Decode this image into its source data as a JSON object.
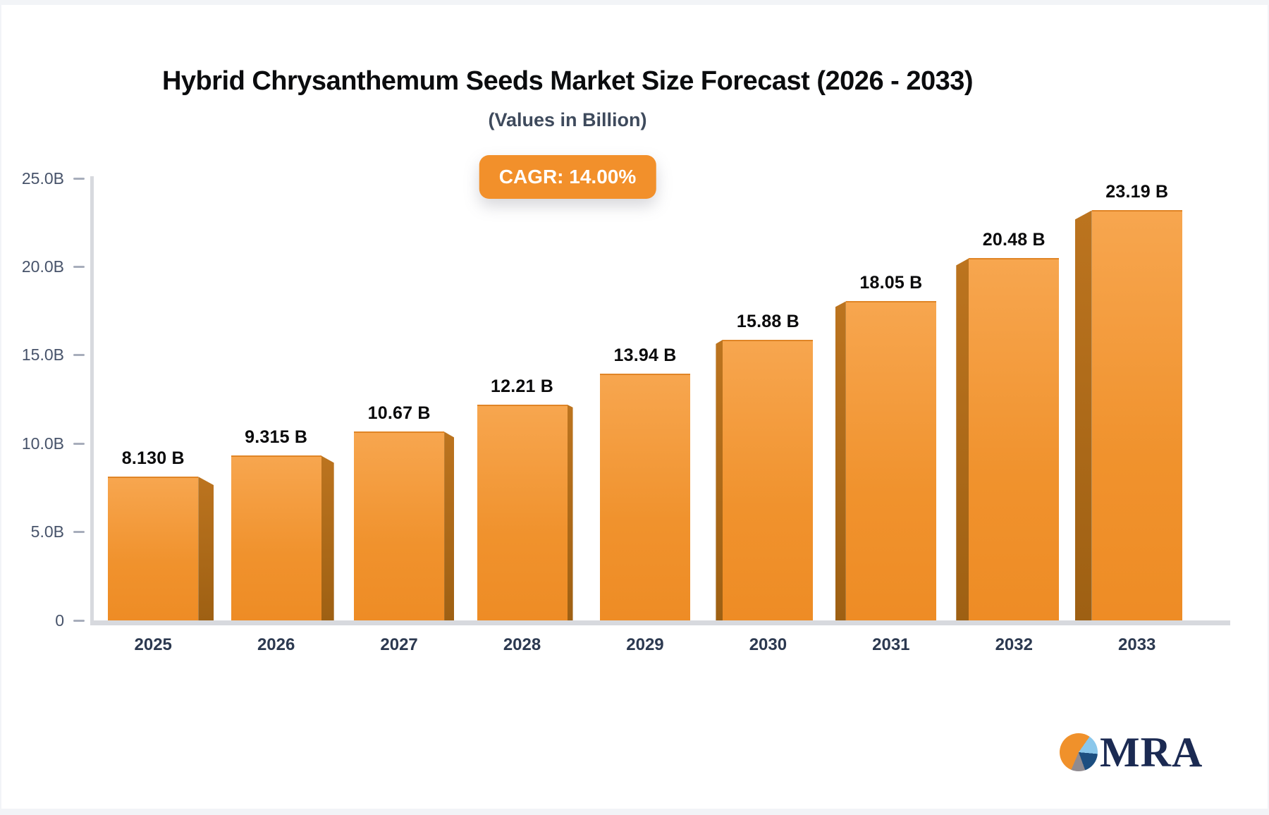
{
  "page": {
    "title": "Hybrid Chrysanthemum Seeds Market Size Forecast (2026 - 2033)",
    "subtitle": "(Values in Billion)",
    "cagr_label": "CAGR: 14.00%"
  },
  "colors": {
    "bar_face_top": "#f7a64f",
    "bar_face_bottom": "#ee8c25",
    "bar_side": "#a8671a",
    "badge_bg": "#f2902b",
    "axis_line": "#d7d9de",
    "logo_navy": "#1b2a52",
    "logo_orange": "#f0912b",
    "logo_lightblue": "#8ac7eb",
    "logo_gray": "#908b90"
  },
  "chart_data": {
    "type": "bar",
    "title": "Hybrid Chrysanthemum Seeds Market Size Forecast (2026 - 2033)",
    "subtitle": "(Values in Billion)",
    "cagr_percent": 14.0,
    "categories": [
      "2025",
      "2026",
      "2027",
      "2028",
      "2029",
      "2030",
      "2031",
      "2032",
      "2033"
    ],
    "values": [
      8.13,
      9.315,
      10.67,
      12.21,
      13.94,
      15.88,
      18.05,
      20.48,
      23.19
    ],
    "bar_labels": [
      "8.130 B",
      "9.315 B",
      "10.67 B",
      "12.21 B",
      "13.94 B",
      "15.88 B",
      "18.05 B",
      "20.48 B",
      "23.19 B"
    ],
    "unit": "Billion",
    "xlabel": "",
    "ylabel": "",
    "yticks": [
      25,
      20,
      15,
      10,
      5,
      0
    ],
    "ytick_labels": [
      "25.0B",
      "20.0B",
      "15.0B",
      "10.0B",
      "5.0B",
      "0"
    ],
    "ylim": [
      0,
      25
    ],
    "grid": false,
    "legend": false
  },
  "logo": {
    "text": "MRA"
  }
}
